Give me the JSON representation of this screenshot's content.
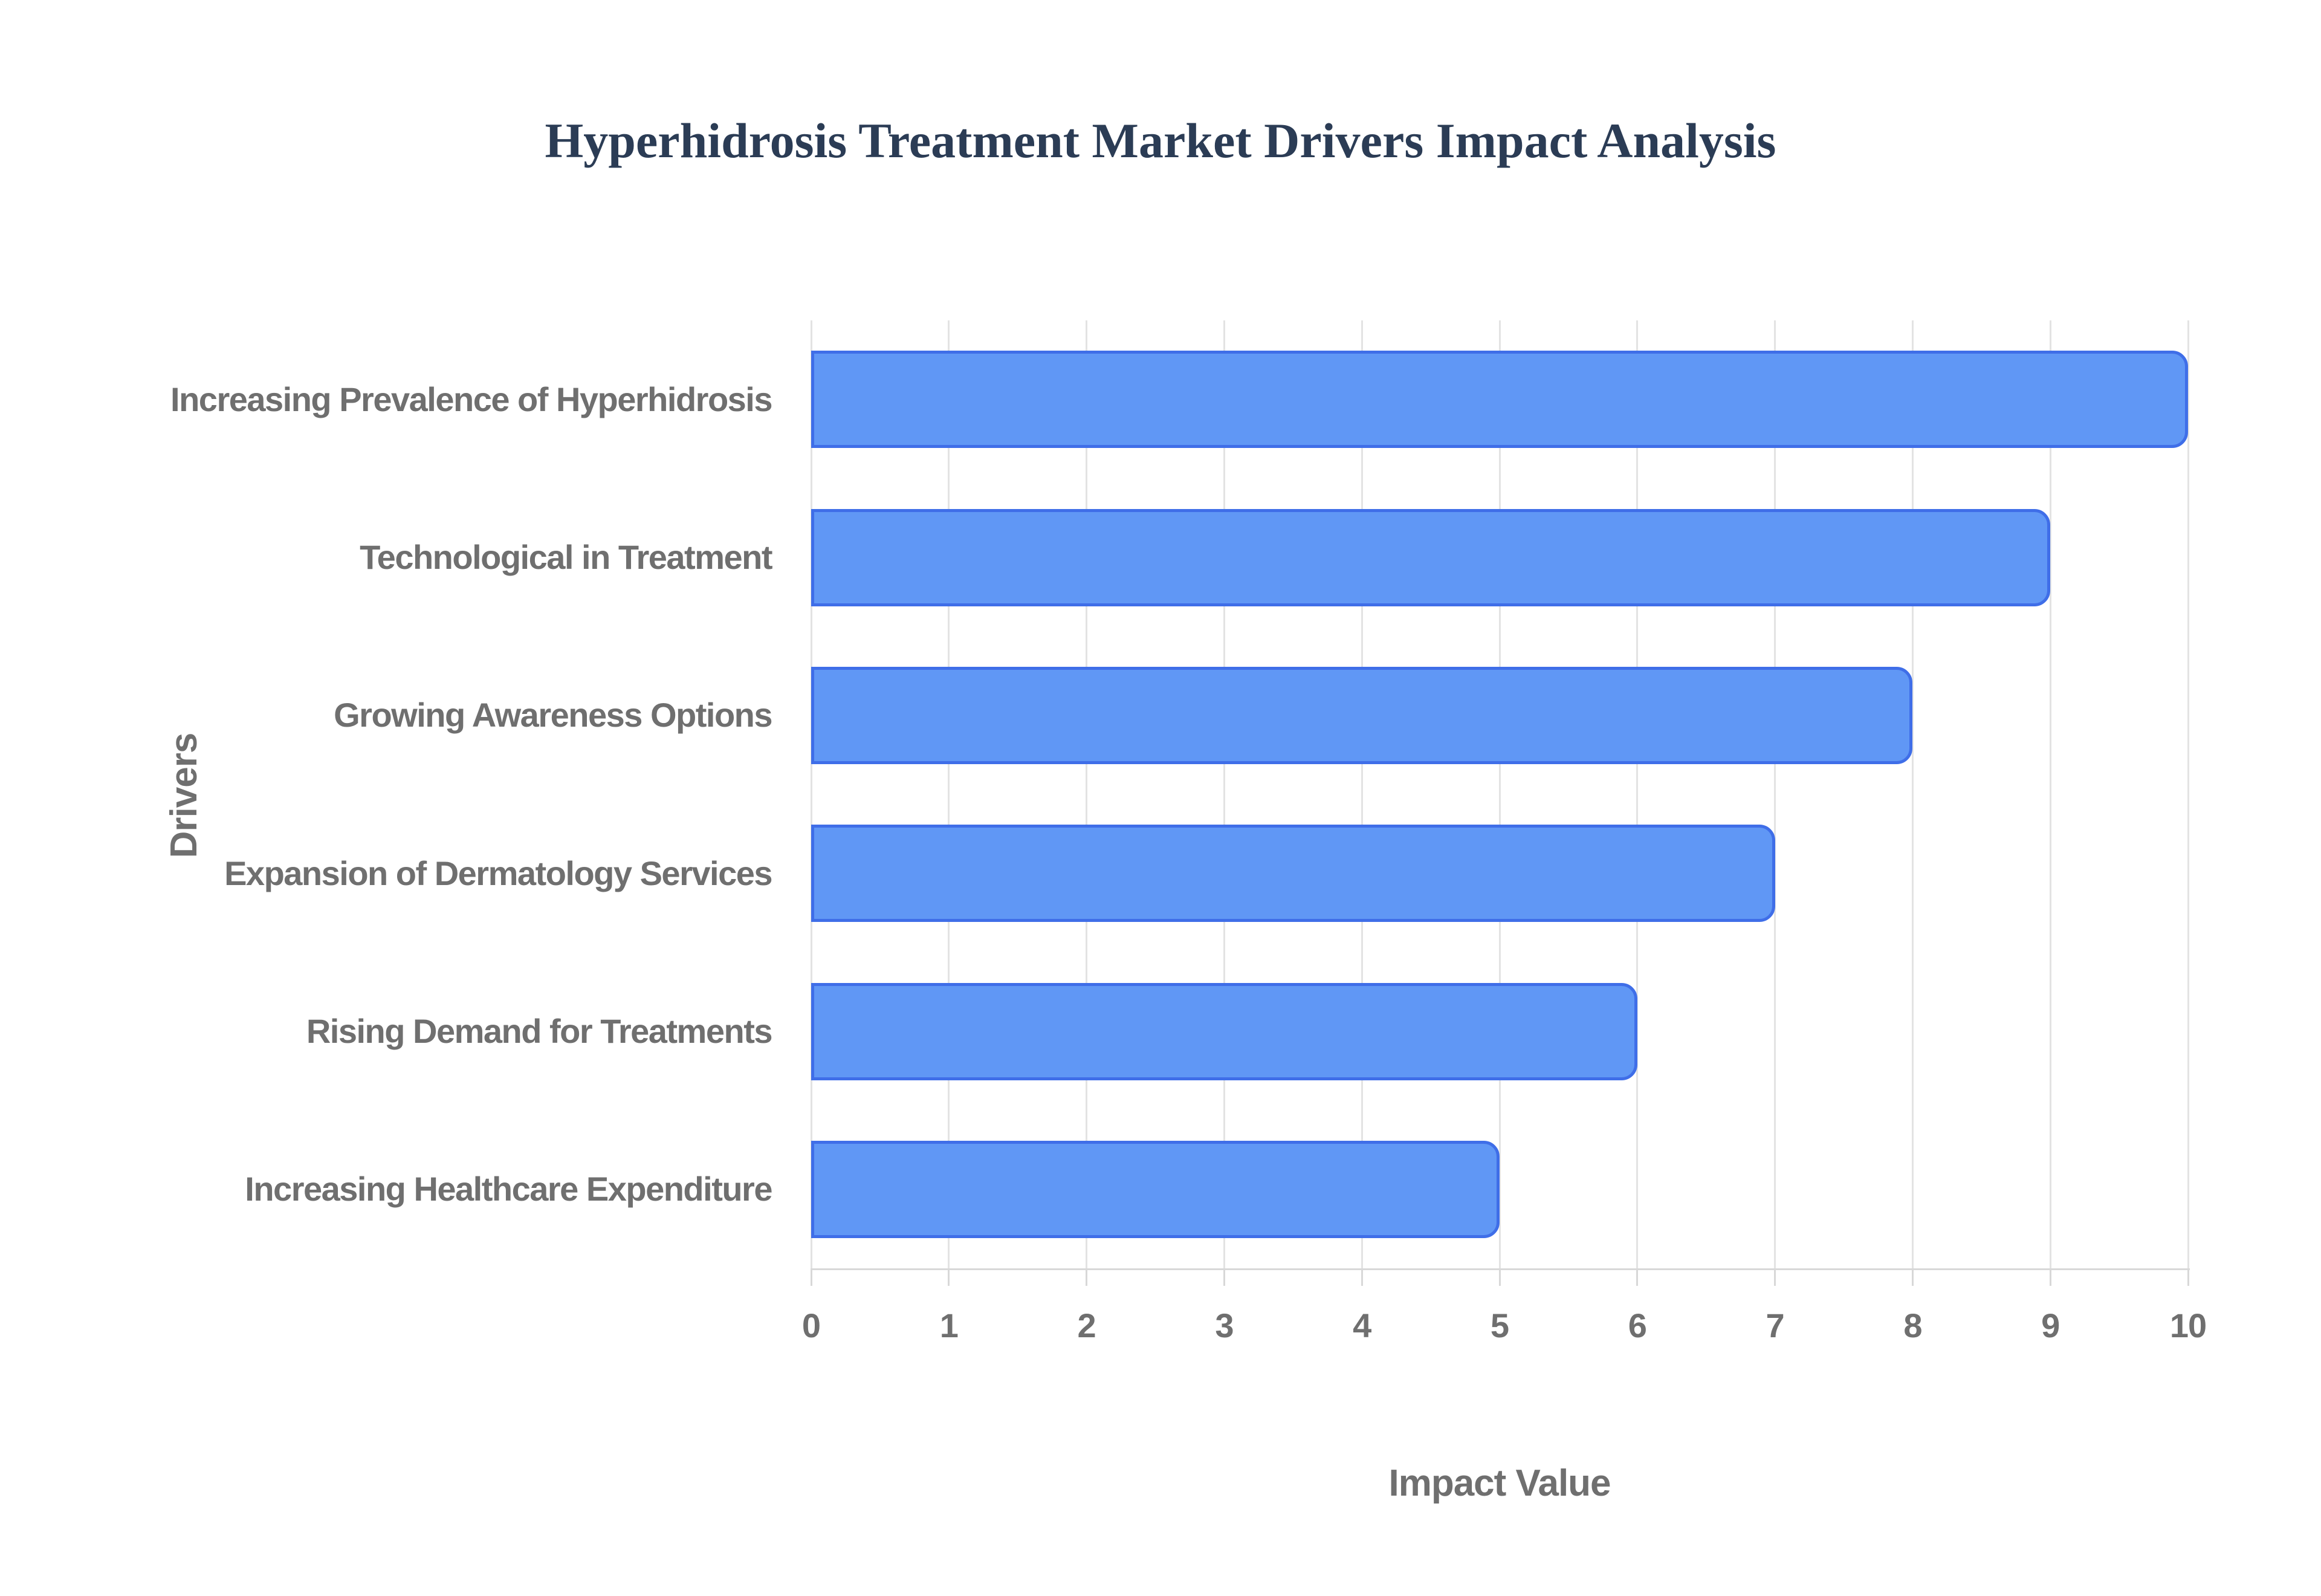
{
  "chart_data": {
    "type": "bar",
    "orientation": "horizontal",
    "title": "Hyperhidrosis Treatment Market Drivers Impact Analysis",
    "categories": [
      "Increasing Prevalence of Hyperhidrosis",
      "Technological in Treatment",
      "Growing Awareness Options",
      "Expansion of Dermatology Services",
      "Rising Demand for Treatments",
      "Increasing Healthcare Expenditure"
    ],
    "values": [
      10,
      9,
      8,
      7,
      6,
      5
    ],
    "xlabel": "Impact Value",
    "ylabel": "Drivers",
    "xlim": [
      0,
      10
    ],
    "xticks": [
      "0",
      "1",
      "2",
      "3",
      "4",
      "5",
      "6",
      "7",
      "8",
      "9",
      "10"
    ],
    "grid": true,
    "legend": "none",
    "colors": {
      "bar_fill": "#6097f5",
      "bar_border": "#3f6ee8",
      "title_text": "#2b3c55",
      "axis_text": "#6f6f6f",
      "gridline": "#e3e3e3",
      "axis_line": "#d8d8d8",
      "background": "#ffffff"
    }
  }
}
